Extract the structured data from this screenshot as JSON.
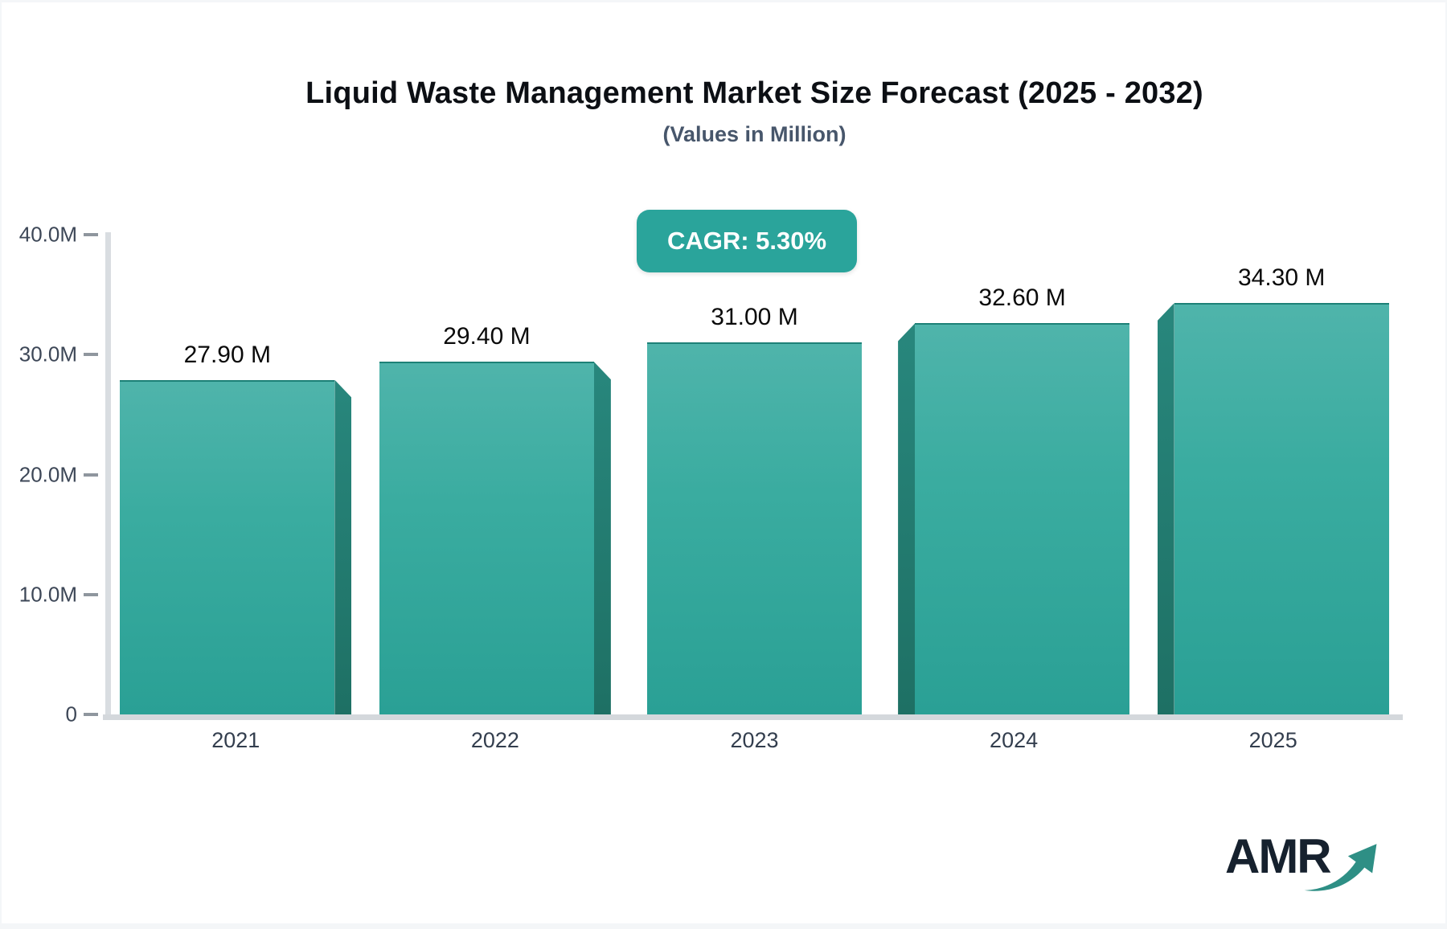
{
  "page": {
    "title": "Liquid Waste Management Market Size Forecast (2025 - 2032)",
    "subtitle": "(Values in Million)",
    "cagr_label": "CAGR: 5.30%",
    "logo_text": "AMR"
  },
  "colors": {
    "accent_teal": "#2aa49b",
    "bar_gradient_top": "#4fb4ab",
    "bar_gradient_bottom": "#2aa095",
    "bar_side_dark": "#1f7a6f",
    "axis_gray": "#d9dde1",
    "tick_text": "#3d4757",
    "logo_dark": "#16212e",
    "logo_arrow_teal": "#2e8f85"
  },
  "chart_data": {
    "type": "bar",
    "title": "Liquid Waste Management Market Size Forecast (2025 - 2032)",
    "subtitle": "(Values in Million)",
    "cagr": "CAGR: 5.30%",
    "categories": [
      "2021",
      "2022",
      "2023",
      "2024",
      "2025"
    ],
    "values": [
      27.9,
      29.4,
      31.0,
      32.6,
      34.3
    ],
    "value_labels": [
      "27.90 M",
      "29.40 M",
      "31.00 M",
      "32.60 M",
      "34.30 M"
    ],
    "unit": "Million",
    "ylim": [
      0,
      40
    ],
    "yticks": [
      {
        "value": 0,
        "label": "0"
      },
      {
        "value": 10,
        "label": "10.0M"
      },
      {
        "value": 20,
        "label": "20.0M"
      },
      {
        "value": 30,
        "label": "30.0M"
      },
      {
        "value": 40,
        "label": "40.0M"
      }
    ],
    "grid": false,
    "legend": false,
    "bar_3d_effect": "bars left of center extrude right, bars right of center extrude left"
  }
}
